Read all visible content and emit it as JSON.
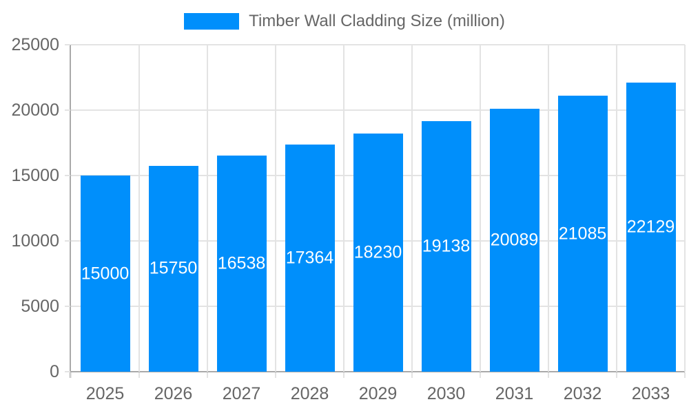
{
  "legend": {
    "label": "Timber Wall Cladding Size (million)"
  },
  "chart_data": {
    "type": "bar",
    "title": "Timber Wall Cladding Size (million)",
    "categories": [
      "2025",
      "2026",
      "2027",
      "2028",
      "2029",
      "2030",
      "2031",
      "2032",
      "2033"
    ],
    "series": [
      {
        "name": "Timber Wall Cladding Size (million)",
        "values": [
          15000,
          15750,
          16538,
          17364,
          18230,
          19138,
          20089,
          21085,
          22129
        ]
      }
    ],
    "xlabel": "",
    "ylabel": "",
    "ylim": [
      0,
      25000
    ],
    "yticks": [
      0,
      5000,
      10000,
      15000,
      20000,
      25000
    ],
    "grid": true,
    "legend_position": "top",
    "bar_labels_inside": true,
    "colors": {
      "bar": "#008FFB",
      "text": "#666666",
      "grid": "#e3e3e3",
      "axis": "#a9a9a9",
      "bar_label": "#ffffff",
      "background": "#ffffff"
    }
  }
}
